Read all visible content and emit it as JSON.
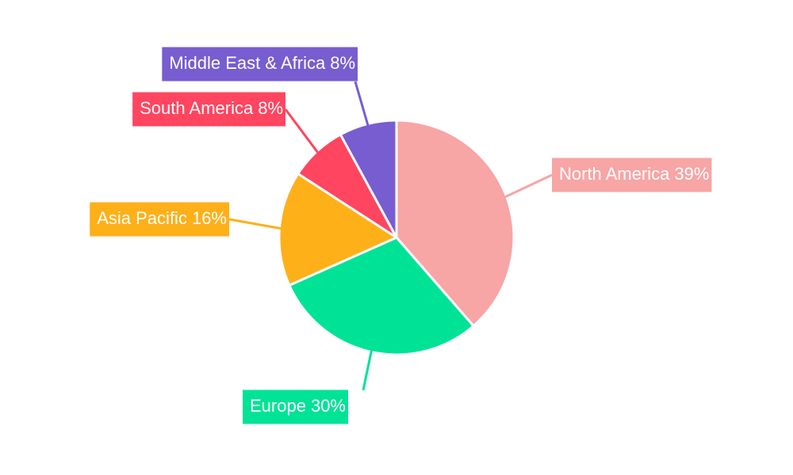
{
  "chart_data": {
    "type": "pie",
    "categories": [
      "North America",
      "Europe",
      "Asia Pacific",
      "South America",
      "Middle East & Africa"
    ],
    "values": [
      39,
      30,
      16,
      8,
      8
    ],
    "value_labels": [
      "39%",
      "30%",
      "16%",
      "8%",
      "8%"
    ],
    "colors": [
      "#f7a5a5",
      "#00e396",
      "#feb019",
      "#ff4560",
      "#775dd0"
    ]
  }
}
